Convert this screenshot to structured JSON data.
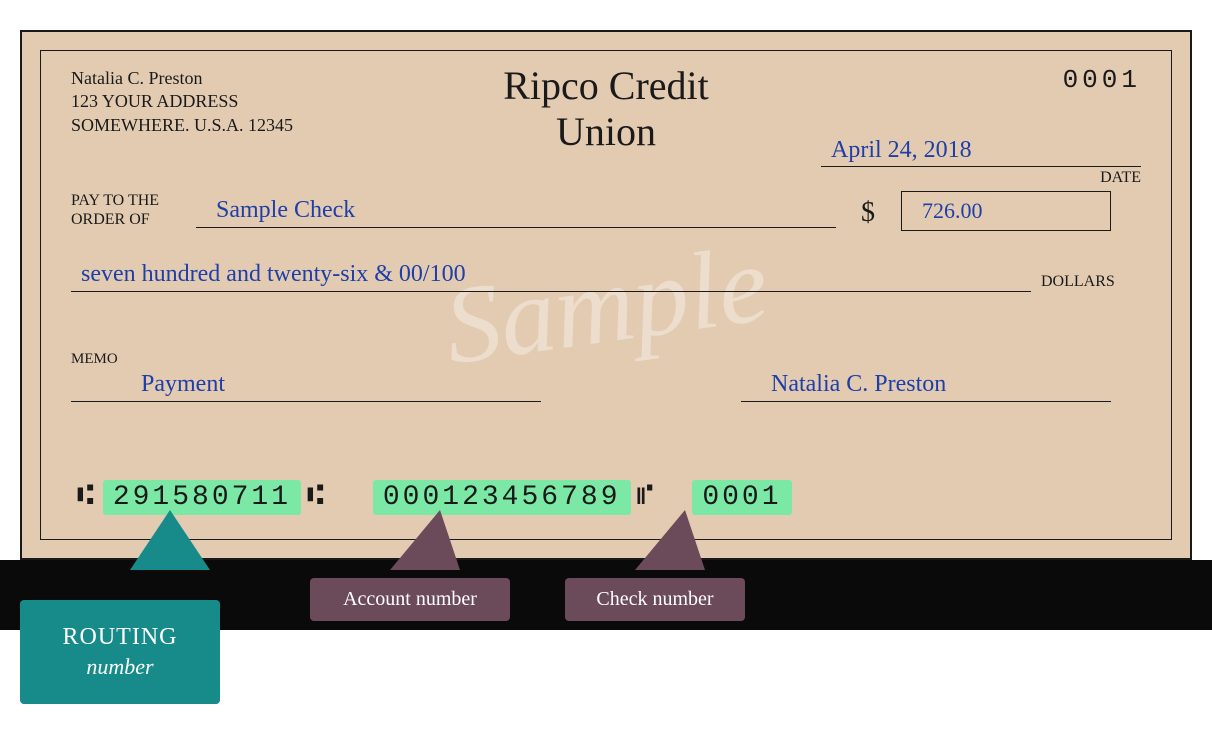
{
  "colors": {
    "check_bg": "#e3cbb2",
    "border": "#1a1a1a",
    "handwriting": "#1e3ea8",
    "highlight": "#7be9a5",
    "black_bar": "#0a0a0a",
    "routing_callout": "#178a8a",
    "other_callout": "#6b4a5a",
    "watermark": "rgba(255,255,255,0.35)"
  },
  "payer": {
    "name": "Natalia C. Preston",
    "address1": "123 YOUR ADDRESS",
    "address2": "SOMEWHERE. U.S.A. 12345"
  },
  "bank_name": "Ripco Credit Union",
  "check_number_top": "0001",
  "date": "April 24, 2018",
  "date_label": "DATE",
  "pay_to_label": "PAY TO THE\nORDER OF",
  "pay_to": "Sample Check",
  "dollar_sign": "$",
  "amount_numeric": "726.00",
  "amount_words": "seven hundred and twenty-six & 00/100",
  "dollars_label": "DOLLARS",
  "memo_label": "MEMO",
  "memo": "Payment",
  "signature": "Natalia C. Preston",
  "watermark": "Sample",
  "micr": {
    "routing": "291580711",
    "account": "000123456789",
    "check_no": "0001",
    "sym_transit": "⑆",
    "sym_onus": "⑈"
  },
  "callouts": {
    "routing_line1": "ROUTING",
    "routing_line2": "number",
    "account": "Account number",
    "check": "Check number"
  }
}
